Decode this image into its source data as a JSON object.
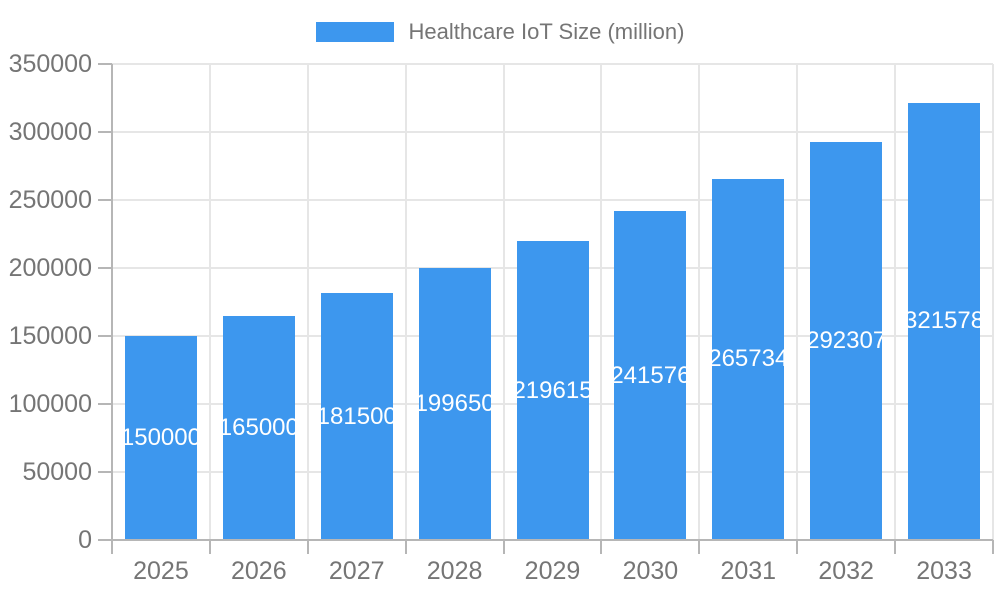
{
  "legend": {
    "label": "Healthcare IoT Size (million)"
  },
  "chart_data": {
    "type": "bar",
    "title": "Healthcare IoT Size (million)",
    "series": [
      {
        "name": "Healthcare IoT Size (million)",
        "values": [
          150000,
          165000,
          181500,
          199650,
          219615,
          241576,
          265734,
          292307,
          321578
        ]
      }
    ],
    "categories": [
      "2025",
      "2026",
      "2027",
      "2028",
      "2029",
      "2030",
      "2031",
      "2032",
      "2033"
    ],
    "values": [
      150000,
      165000,
      181500,
      199650,
      219615,
      241576,
      265734,
      292307,
      321578
    ],
    "bar_value_labels": [
      "150000",
      "165000",
      "181500",
      "199650",
      "219615",
      "241576",
      "265734",
      "292307",
      "321578"
    ],
    "xlabel": "",
    "ylabel": "",
    "ylim": [
      0,
      350000
    ],
    "yticks": [
      0,
      50000,
      100000,
      150000,
      200000,
      250000,
      300000,
      350000
    ],
    "ytick_labels": [
      "0",
      "50000",
      "100000",
      "150000",
      "200000",
      "250000",
      "300000",
      "350000"
    ],
    "grid": true,
    "legend_position": "top-center",
    "colors": {
      "bar": "#3d97ee",
      "bar_label": "#ffffff",
      "axis": "#b6b6b6",
      "grid": "#e6e6e6",
      "tick_label": "#757575"
    }
  }
}
